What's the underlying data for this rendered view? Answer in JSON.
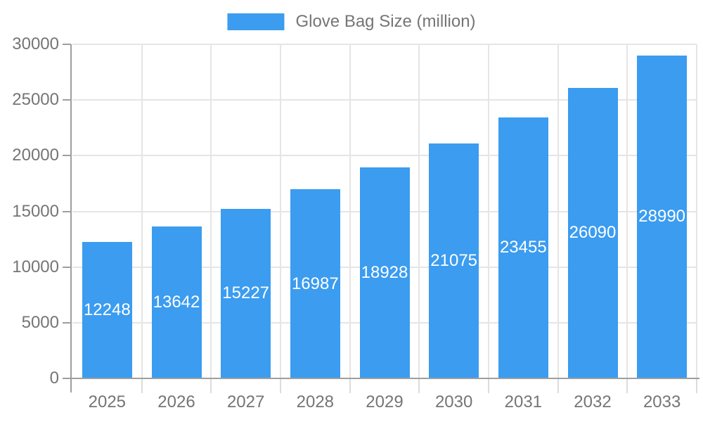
{
  "legend": {
    "label": "Glove Bag Size (million)"
  },
  "chart_data": {
    "type": "bar",
    "title": "Glove Bag Size (million)",
    "categories": [
      "2025",
      "2026",
      "2027",
      "2028",
      "2029",
      "2030",
      "2031",
      "2032",
      "2033"
    ],
    "values": [
      12248,
      13642,
      15227,
      16987,
      18928,
      21075,
      23455,
      26090,
      28990
    ],
    "series": [
      {
        "name": "Glove Bag Size (million)",
        "values": [
          12248,
          13642,
          15227,
          16987,
          18928,
          21075,
          23455,
          26090,
          28990
        ]
      }
    ],
    "xlabel": "",
    "ylabel": "",
    "ylim": [
      0,
      30000
    ],
    "yticks": [
      0,
      5000,
      10000,
      15000,
      20000,
      25000,
      30000
    ],
    "grid": "on",
    "legend_position": "top-center",
    "bar_labels": "white, centered inside bars",
    "colors": {
      "bar": "#3B9CF0",
      "grid": "#e5e5e5",
      "axis": "#9e9e9e",
      "tick_text": "#757575",
      "bar_label_text": "#ffffff"
    }
  }
}
